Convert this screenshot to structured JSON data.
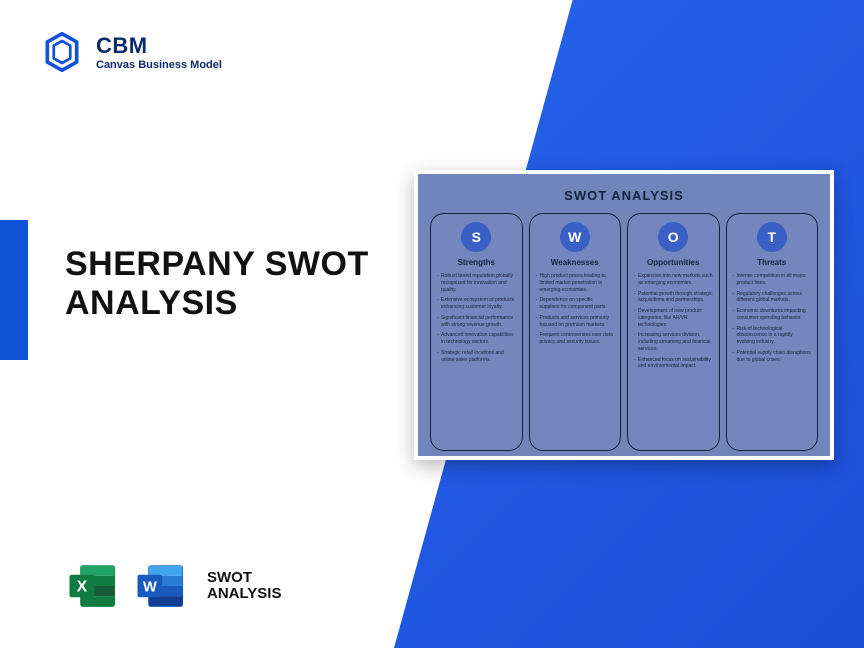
{
  "brand": {
    "abbr": "CBM",
    "full": "Canvas Business Model",
    "logo_color": "#1152d6"
  },
  "accent_bar_color": "#1152d6",
  "main_title": "SHERPANY SWOT ANALYSIS",
  "bottom": {
    "excel_color": "#107c41",
    "word_color": "#185abd",
    "label_line1": "SWOT",
    "label_line2": "ANALYSIS"
  },
  "diag_gradient": {
    "from": "#2563eb",
    "to": "#1d4ed8"
  },
  "swot": {
    "title": "SWOT ANALYSIS",
    "card_bg": "#7185bd",
    "border_color": "#16223b",
    "circle_bg": "#3a5fc5",
    "columns": [
      {
        "letter": "S",
        "heading": "Strengths",
        "items": [
          "Robust brand reputation globally recognized for innovation and quality.",
          "Extensive ecosystem of products enhancing customer loyalty.",
          "Significant financial performance with strong revenue growth.",
          "Advanced innovation capabilities in technology sectors.",
          "Strategic retail locations and online sales platforms."
        ]
      },
      {
        "letter": "W",
        "heading": "Weaknesses",
        "items": [
          "High product prices leading to limited market penetration in emerging economies.",
          "Dependence on specific suppliers for component parts.",
          "Products and services primarily focused on premium markets.",
          "Frequent controversies over data privacy and security issues."
        ]
      },
      {
        "letter": "O",
        "heading": "Opportunities",
        "items": [
          "Expansion into new markets such as emerging economies.",
          "Potential growth through strategic acquisitions and partnerships.",
          "Development of new product categories, like AR/VR technologies.",
          "Increasing services division, including streaming and financial services.",
          "Enhanced focus on sustainability and environmental impact."
        ]
      },
      {
        "letter": "T",
        "heading": "Threats",
        "items": [
          "Intense competition in all major product lines.",
          "Regulatory challenges across different global markets.",
          "Economic downturns impacting consumer spending behavior.",
          "Risk of technological obsolescence in a rapidly evolving industry.",
          "Potential supply chain disruptions due to global crises."
        ]
      }
    ]
  }
}
